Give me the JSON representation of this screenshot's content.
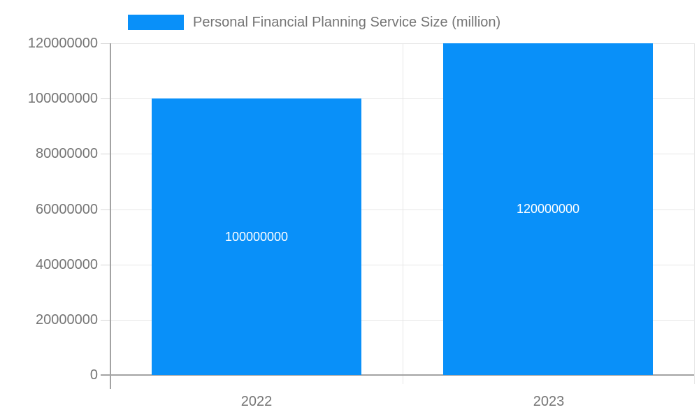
{
  "legend": {
    "label": "Personal Financial Planning Service Size (million)"
  },
  "colors": {
    "bar": "#0990F9",
    "axis_line": "#a3a3a3",
    "grid_line": "#e6e6e6",
    "tick_mark": "#d6d6d6",
    "tick_label": "#757575",
    "bar_label": "#ffffff",
    "background": "#ffffff"
  },
  "chart_data": {
    "type": "bar",
    "title": "Personal Financial Planning Service Size (million)",
    "categories": [
      "2022",
      "2023"
    ],
    "series": [
      {
        "name": "Personal Financial Planning Service Size (million)",
        "values": [
          100000000,
          120000000
        ],
        "color": "#0990F9"
      }
    ],
    "bar_value_labels": [
      "100000000",
      "120000000"
    ],
    "xlabel": "",
    "ylabel": "",
    "ylim": [
      0,
      120000000
    ],
    "yticks": [
      0,
      20000000,
      40000000,
      60000000,
      80000000,
      100000000,
      120000000
    ],
    "ytick_labels": [
      "0",
      "20000000",
      "40000000",
      "60000000",
      "80000000",
      "100000000",
      "120000000"
    ],
    "grid": true,
    "legend_position": "top"
  }
}
